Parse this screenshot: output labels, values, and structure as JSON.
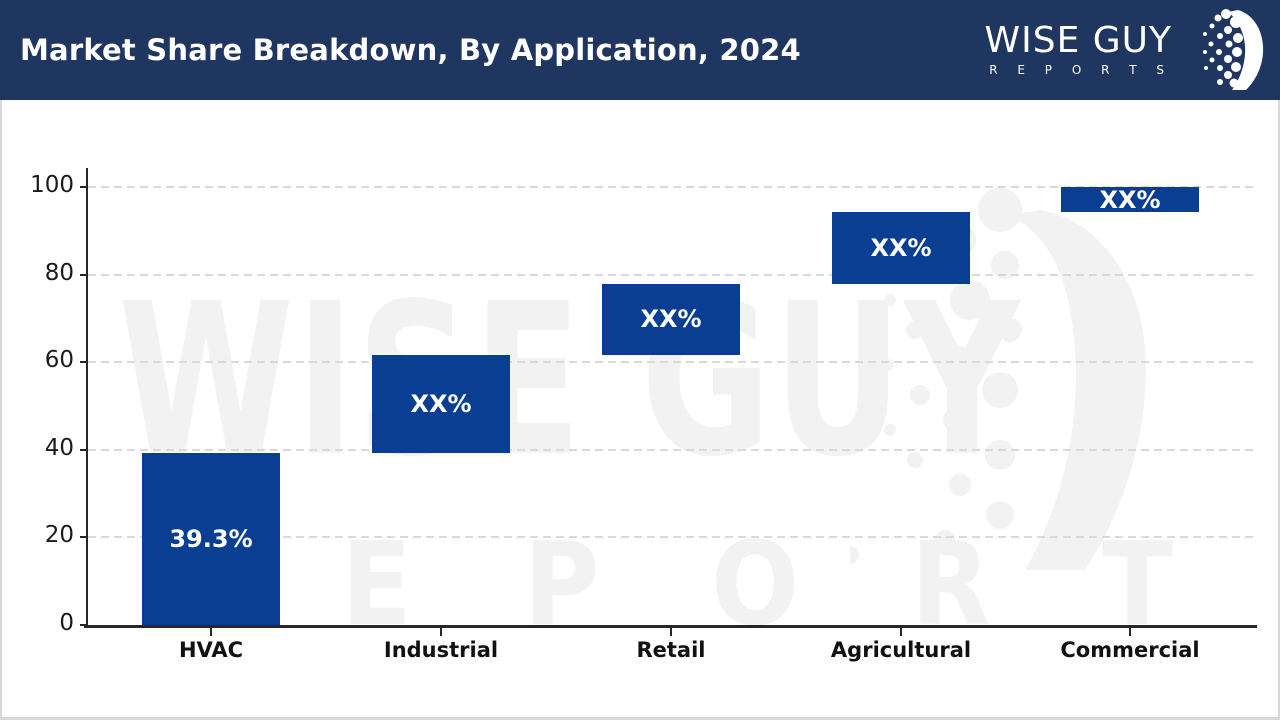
{
  "header": {
    "title": "Market Share Breakdown, By Application, 2024",
    "logo": {
      "line1": "WISE GUY",
      "line2": "R E P O R T S"
    }
  },
  "watermark": {
    "line1": "WISE GUY",
    "line2": "R E P O R T S"
  },
  "chart_data": {
    "type": "bar",
    "subtype": "waterfall",
    "title": "Market Share Breakdown, By Application, 2024",
    "categories": [
      "HVAC",
      "Industrial",
      "Retail",
      "Agricultural",
      "Commercial"
    ],
    "values": [
      39.3,
      22.3,
      16.3,
      16.3,
      5.8
    ],
    "cumulative_tops": [
      39.3,
      61.6,
      77.9,
      94.2,
      100.0
    ],
    "bar_labels": [
      "39.3%",
      "XX%",
      "XX%",
      "XX%",
      "XX%"
    ],
    "xlabel": "",
    "ylabel": "",
    "ylim": [
      0,
      100
    ],
    "yticks": [
      0,
      20,
      40,
      60,
      80,
      100
    ],
    "grid": "horizontal-dashed",
    "legend": "none",
    "colors": {
      "bar": "#0a3e93",
      "bar_label": "#ffffff",
      "axis": "#262626",
      "grid": "#d9d9d9",
      "header_bg": "#1f3660",
      "tick_label": "#1a1a1a"
    }
  }
}
